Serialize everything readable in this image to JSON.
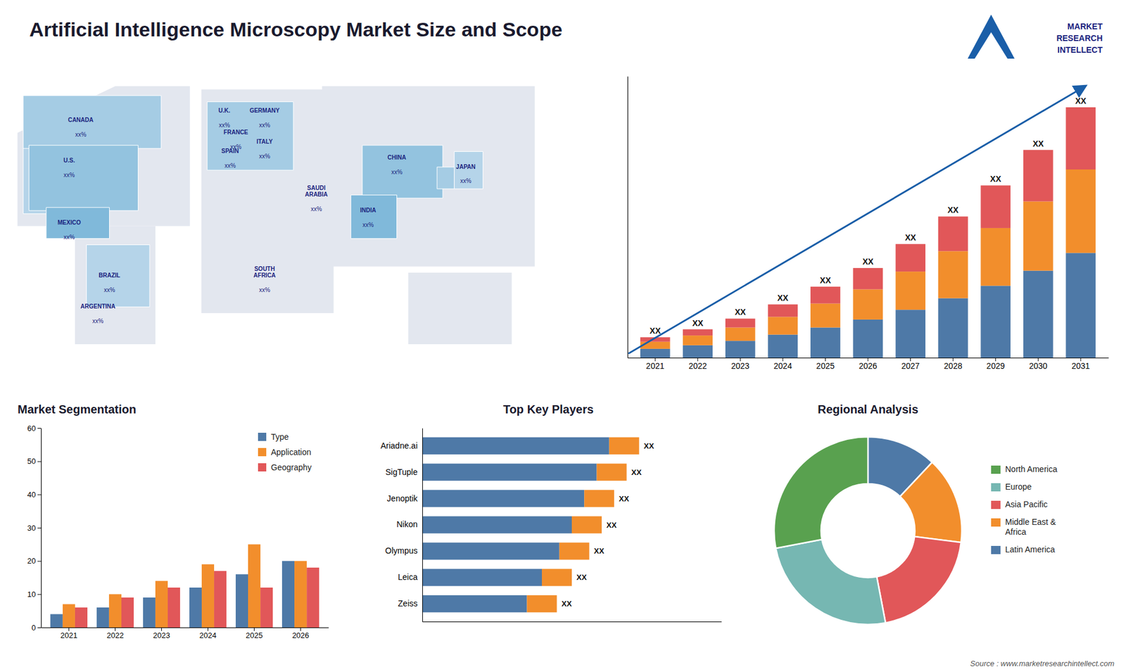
{
  "chart_data": [
    {
      "type": "bar",
      "title": "Artificial Intelligence Microscopy Market Size and Scope",
      "stacked": true,
      "categories": [
        "2021",
        "2022",
        "2023",
        "2024",
        "2025",
        "2026",
        "2027",
        "2028",
        "2029",
        "2030",
        "2031"
      ],
      "series": [
        {
          "values": [
            1.0,
            1.4,
            1.9,
            2.6,
            3.4,
            4.3,
            5.4,
            6.7,
            8.1,
            9.8,
            11.8
          ]
        },
        {
          "values": [
            0.8,
            1.1,
            1.5,
            2.0,
            2.7,
            3.4,
            4.3,
            5.3,
            6.5,
            7.8,
            9.4
          ]
        },
        {
          "values": [
            0.5,
            0.7,
            1.0,
            1.4,
            1.9,
            2.4,
            3.1,
            3.9,
            4.8,
            5.8,
            7.0
          ],
          "value_labels": [
            "XX",
            "XX",
            "XX",
            "XX",
            "XX",
            "XX",
            "XX",
            "XX",
            "XX",
            "XX",
            "XX"
          ]
        }
      ],
      "ylim": [
        0,
        31.7
      ],
      "yticks": [],
      "tick_labels": "x",
      "annotations": [
        "MARKET",
        "RESEARCH",
        "INTELLECT",
        "Source : www.marketresearchintellect.com"
      ]
    },
    {
      "type": "bar",
      "title": "Market Segmentation",
      "categories": [
        "2021",
        "2022",
        "2023",
        "2024",
        "2025",
        "2026"
      ],
      "series": [
        {
          "name": "Type",
          "values": [
            4,
            6,
            9,
            12,
            16,
            20
          ]
        },
        {
          "name": "Application",
          "values": [
            7,
            10,
            14,
            19,
            25,
            20
          ]
        },
        {
          "name": "Geography",
          "values": [
            6,
            9,
            12,
            17,
            12,
            18
          ]
        }
      ],
      "ylim": [
        0,
        60
      ],
      "yticks": [
        0,
        10,
        20,
        30,
        40,
        50,
        60
      ],
      "legend": "upper right"
    },
    {
      "type": "bar",
      "title": "Top Key Players",
      "orientation": "horizontal",
      "stacked": true,
      "categories": [
        "Ariadne.ai",
        "SigTuple",
        "Jenoptik",
        "Nikon",
        "Olympus",
        "Leica",
        "Zeiss"
      ],
      "series": [
        {
          "values": [
            7.5,
            7.0,
            6.5,
            6.0,
            5.5,
            4.8,
            4.2
          ]
        },
        {
          "values": [
            1.2,
            1.2,
            1.2,
            1.2,
            1.2,
            1.2,
            1.2
          ],
          "value_labels": [
            "XX",
            "XX",
            "XX",
            "XX",
            "XX",
            "XX",
            "XX"
          ]
        }
      ],
      "xlim": [
        0,
        12
      ],
      "xticks": [],
      "tick_labels": "y"
    },
    {
      "type": "donut",
      "title": "Regional Analysis",
      "categories": [
        "Latin America",
        "Middle East &\nAfrica",
        "Asia Pacific",
        "Europe",
        "North America"
      ],
      "values": [
        12,
        15,
        20,
        25,
        28
      ],
      "legend": "right"
    },
    {
      "type": "map",
      "annotations": [
        "CANADA",
        "xx%",
        "U.S.",
        "xx%",
        "MEXICO",
        "xx%",
        "BRAZIL",
        "xx%",
        "ARGENTINA",
        "xx%",
        "U.K.",
        "xx%",
        "FRANCE",
        "xx%",
        "SPAIN",
        "xx%",
        "GERMANY",
        "xx%",
        "ITALY",
        "xx%",
        "SAUDI\nARABIA",
        "xx%",
        "SOUTH\nAFRICA",
        "xx%",
        "CHINA",
        "xx%",
        "JAPAN",
        "xx%",
        "INDIA",
        "xx%"
      ]
    }
  ]
}
